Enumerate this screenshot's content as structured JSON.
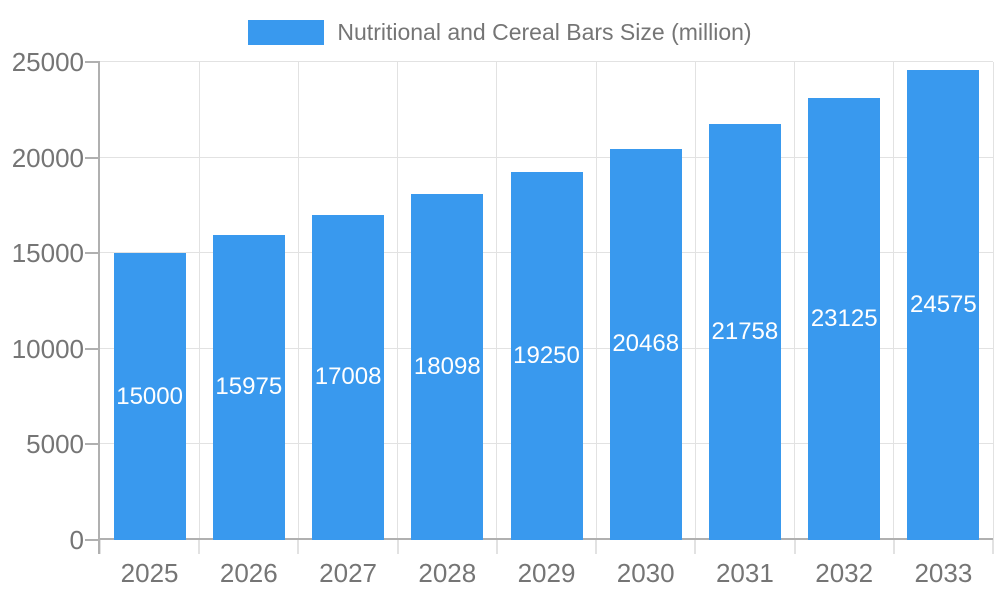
{
  "legend": {
    "label": "Nutritional and Cereal Bars Size (million)"
  },
  "colors": {
    "bar": "#3999EE",
    "axis": "#B0B0B0",
    "grid": "#E2E2E2",
    "tick_x": "#E2E2E2",
    "tick_label": "#757575",
    "legend_label": "#757575",
    "value_label": "#FFFFFF",
    "background": "#FFFFFF"
  },
  "chart_data": {
    "type": "bar",
    "title": "Nutritional and Cereal Bars Size (million)",
    "categories": [
      "2025",
      "2026",
      "2027",
      "2028",
      "2029",
      "2030",
      "2031",
      "2032",
      "2033"
    ],
    "values": [
      15000,
      15975,
      17008,
      18098,
      19250,
      20468,
      21758,
      23125,
      24575
    ],
    "series": [
      {
        "name": "Nutritional and Cereal Bars Size (million)",
        "values": [
          15000,
          15975,
          17008,
          18098,
          19250,
          20468,
          21758,
          23125,
          24575
        ]
      }
    ],
    "xlabel": "",
    "ylabel": "",
    "ylim": [
      0,
      25000
    ],
    "yticks": [
      0,
      5000,
      10000,
      15000,
      20000,
      25000
    ],
    "grid": true,
    "legend_position": "top",
    "value_label_position": "inside-center"
  }
}
